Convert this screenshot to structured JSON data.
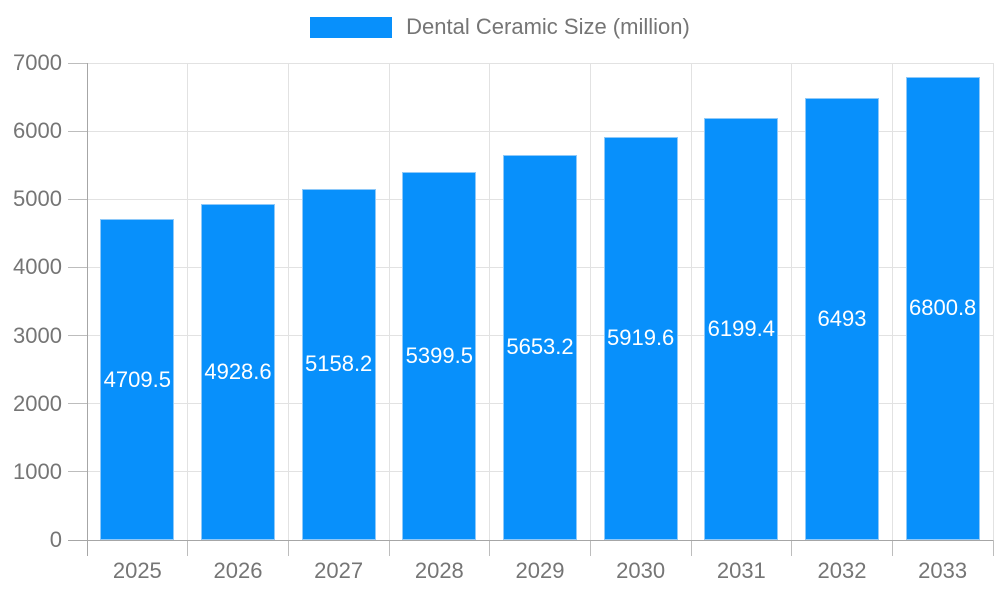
{
  "legend": {
    "label": "Dental Ceramic Size (million)"
  },
  "colors": {
    "bar": "#0890fb",
    "bar_border": "#8ec9f9",
    "grid": "#e2e2e2",
    "axis": "#a6a6a6",
    "tick": "#bdbdbd",
    "text": "#757575",
    "value_label": "#ffffff"
  },
  "chart_data": {
    "type": "bar",
    "title": "Dental Ceramic Size (million)",
    "categories": [
      "2025",
      "2026",
      "2027",
      "2028",
      "2029",
      "2030",
      "2031",
      "2032",
      "2033"
    ],
    "series": [
      {
        "name": "Dental Ceramic Size (million)",
        "values": [
          4709.5,
          4928.6,
          5158.2,
          5399.5,
          5653.2,
          5919.6,
          6199.4,
          6493,
          6800.8
        ]
      }
    ],
    "value_labels": [
      "4709.5",
      "4928.6",
      "5158.2",
      "5399.5",
      "5653.2",
      "5919.6",
      "6199.4",
      "6493",
      "6800.8"
    ],
    "xlabel": "",
    "ylabel": "",
    "ylim": [
      0,
      7000
    ],
    "ytick_step": 1000,
    "y_tick_labels": [
      "0",
      "1000",
      "2000",
      "3000",
      "4000",
      "5000",
      "6000",
      "7000"
    ],
    "grid": true,
    "legend_position": "top"
  }
}
